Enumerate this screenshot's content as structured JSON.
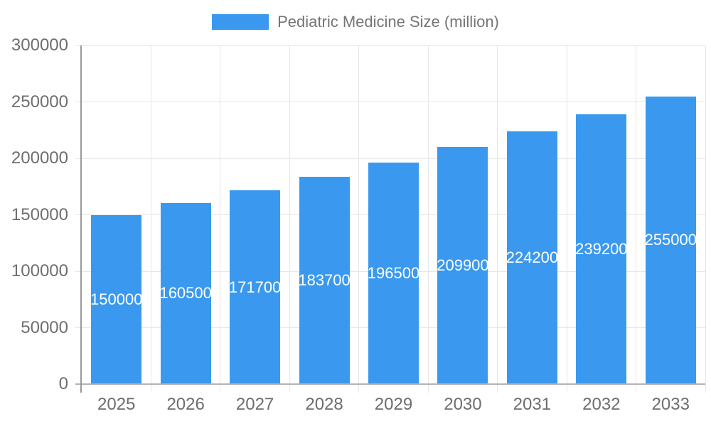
{
  "legend": {
    "label": "Pediatric Medicine Size (million)"
  },
  "chart_data": {
    "type": "bar",
    "title": "Pediatric Medicine Size (million)",
    "categories": [
      "2025",
      "2026",
      "2027",
      "2028",
      "2029",
      "2030",
      "2031",
      "2032",
      "2033"
    ],
    "values": [
      150000,
      160500,
      171700,
      183700,
      196500,
      209900,
      224200,
      239200,
      255000
    ],
    "xlabel": "",
    "ylabel": "",
    "ylim": [
      0,
      300000
    ],
    "ytick_step": 50000,
    "y_tick_labels": [
      "0",
      "50000",
      "100000",
      "150000",
      "200000",
      "250000",
      "300000"
    ],
    "legend_position": "top-center",
    "grid": true,
    "bar_labels_visible": true,
    "colors": {
      "bar": "#3a99ee",
      "bar_label": "#ffffff",
      "axis_line": "#999999",
      "baseline": "#b3b3b3",
      "gridline": "#e6e6e6",
      "tick_text": "#6e6e6e",
      "legend_text": "#757575"
    }
  }
}
